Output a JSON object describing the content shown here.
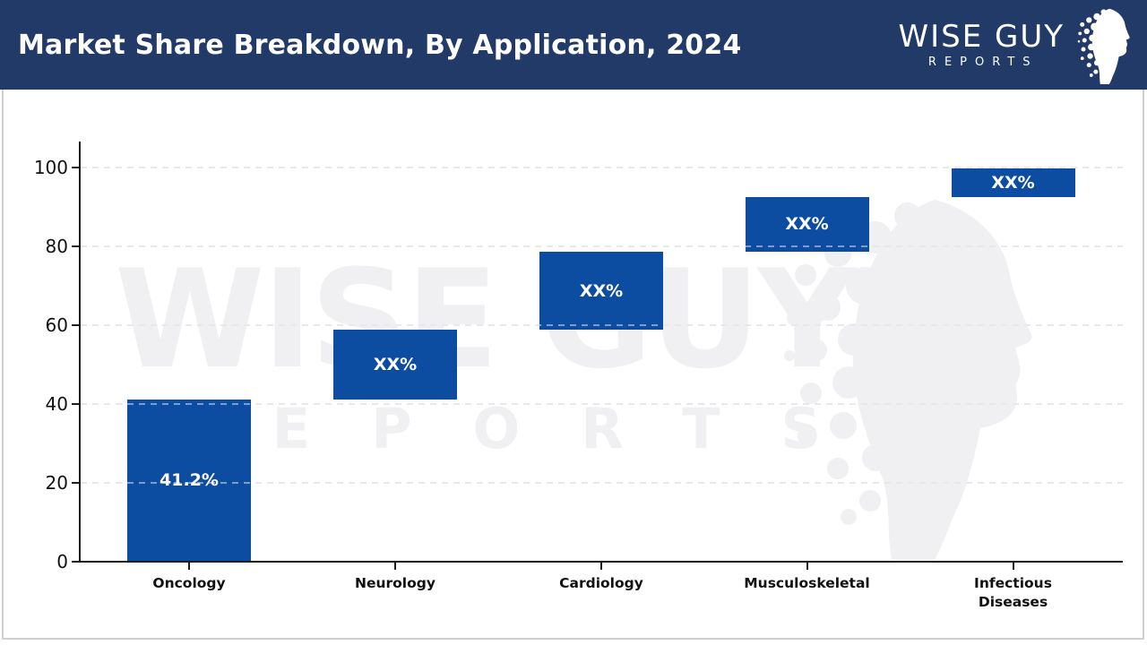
{
  "header": {
    "title": "Market Share Breakdown, By Application, 2024",
    "logo": {
      "line1": "WISE GUY",
      "line2": "REPORTS"
    }
  },
  "watermark": {
    "line1": "WISE GUY",
    "line2": "REPORTS"
  },
  "chart_data": {
    "type": "bar",
    "subtype": "waterfall",
    "title": "Market Share Breakdown, By Application, 2024",
    "categories": [
      "Oncology",
      "Neurology",
      "Cardiology",
      "Musculoskeletal",
      "Infectious Diseases"
    ],
    "segments": [
      {
        "category": "Oncology",
        "start": 0,
        "end": 41.2,
        "label": "41.2%"
      },
      {
        "category": "Neurology",
        "start": 41.2,
        "end": 58.8,
        "label": "XX%"
      },
      {
        "category": "Cardiology",
        "start": 58.8,
        "end": 78.6,
        "label": "XX%"
      },
      {
        "category": "Musculoskeletal",
        "start": 78.6,
        "end": 92.5,
        "label": "XX%"
      },
      {
        "category": "Infectious Diseases",
        "start": 92.5,
        "end": 99.8,
        "label": "XX%"
      }
    ],
    "xlabel": "",
    "ylabel": "",
    "ylim": [
      0,
      100
    ],
    "yticks": [
      0,
      20,
      40,
      60,
      80,
      100
    ],
    "grid": true,
    "grid_style": "dashed",
    "legend": "none"
  },
  "colors": {
    "header_navy": "#213a68",
    "bar_blue": "#0d4da1",
    "bar_label": "#ffffff",
    "grid": "#d6d6d6",
    "axis": "#1c1c1c",
    "tick_text": "#111111",
    "watermark": "#f0f0f3",
    "frame": "#cfcfcf"
  }
}
